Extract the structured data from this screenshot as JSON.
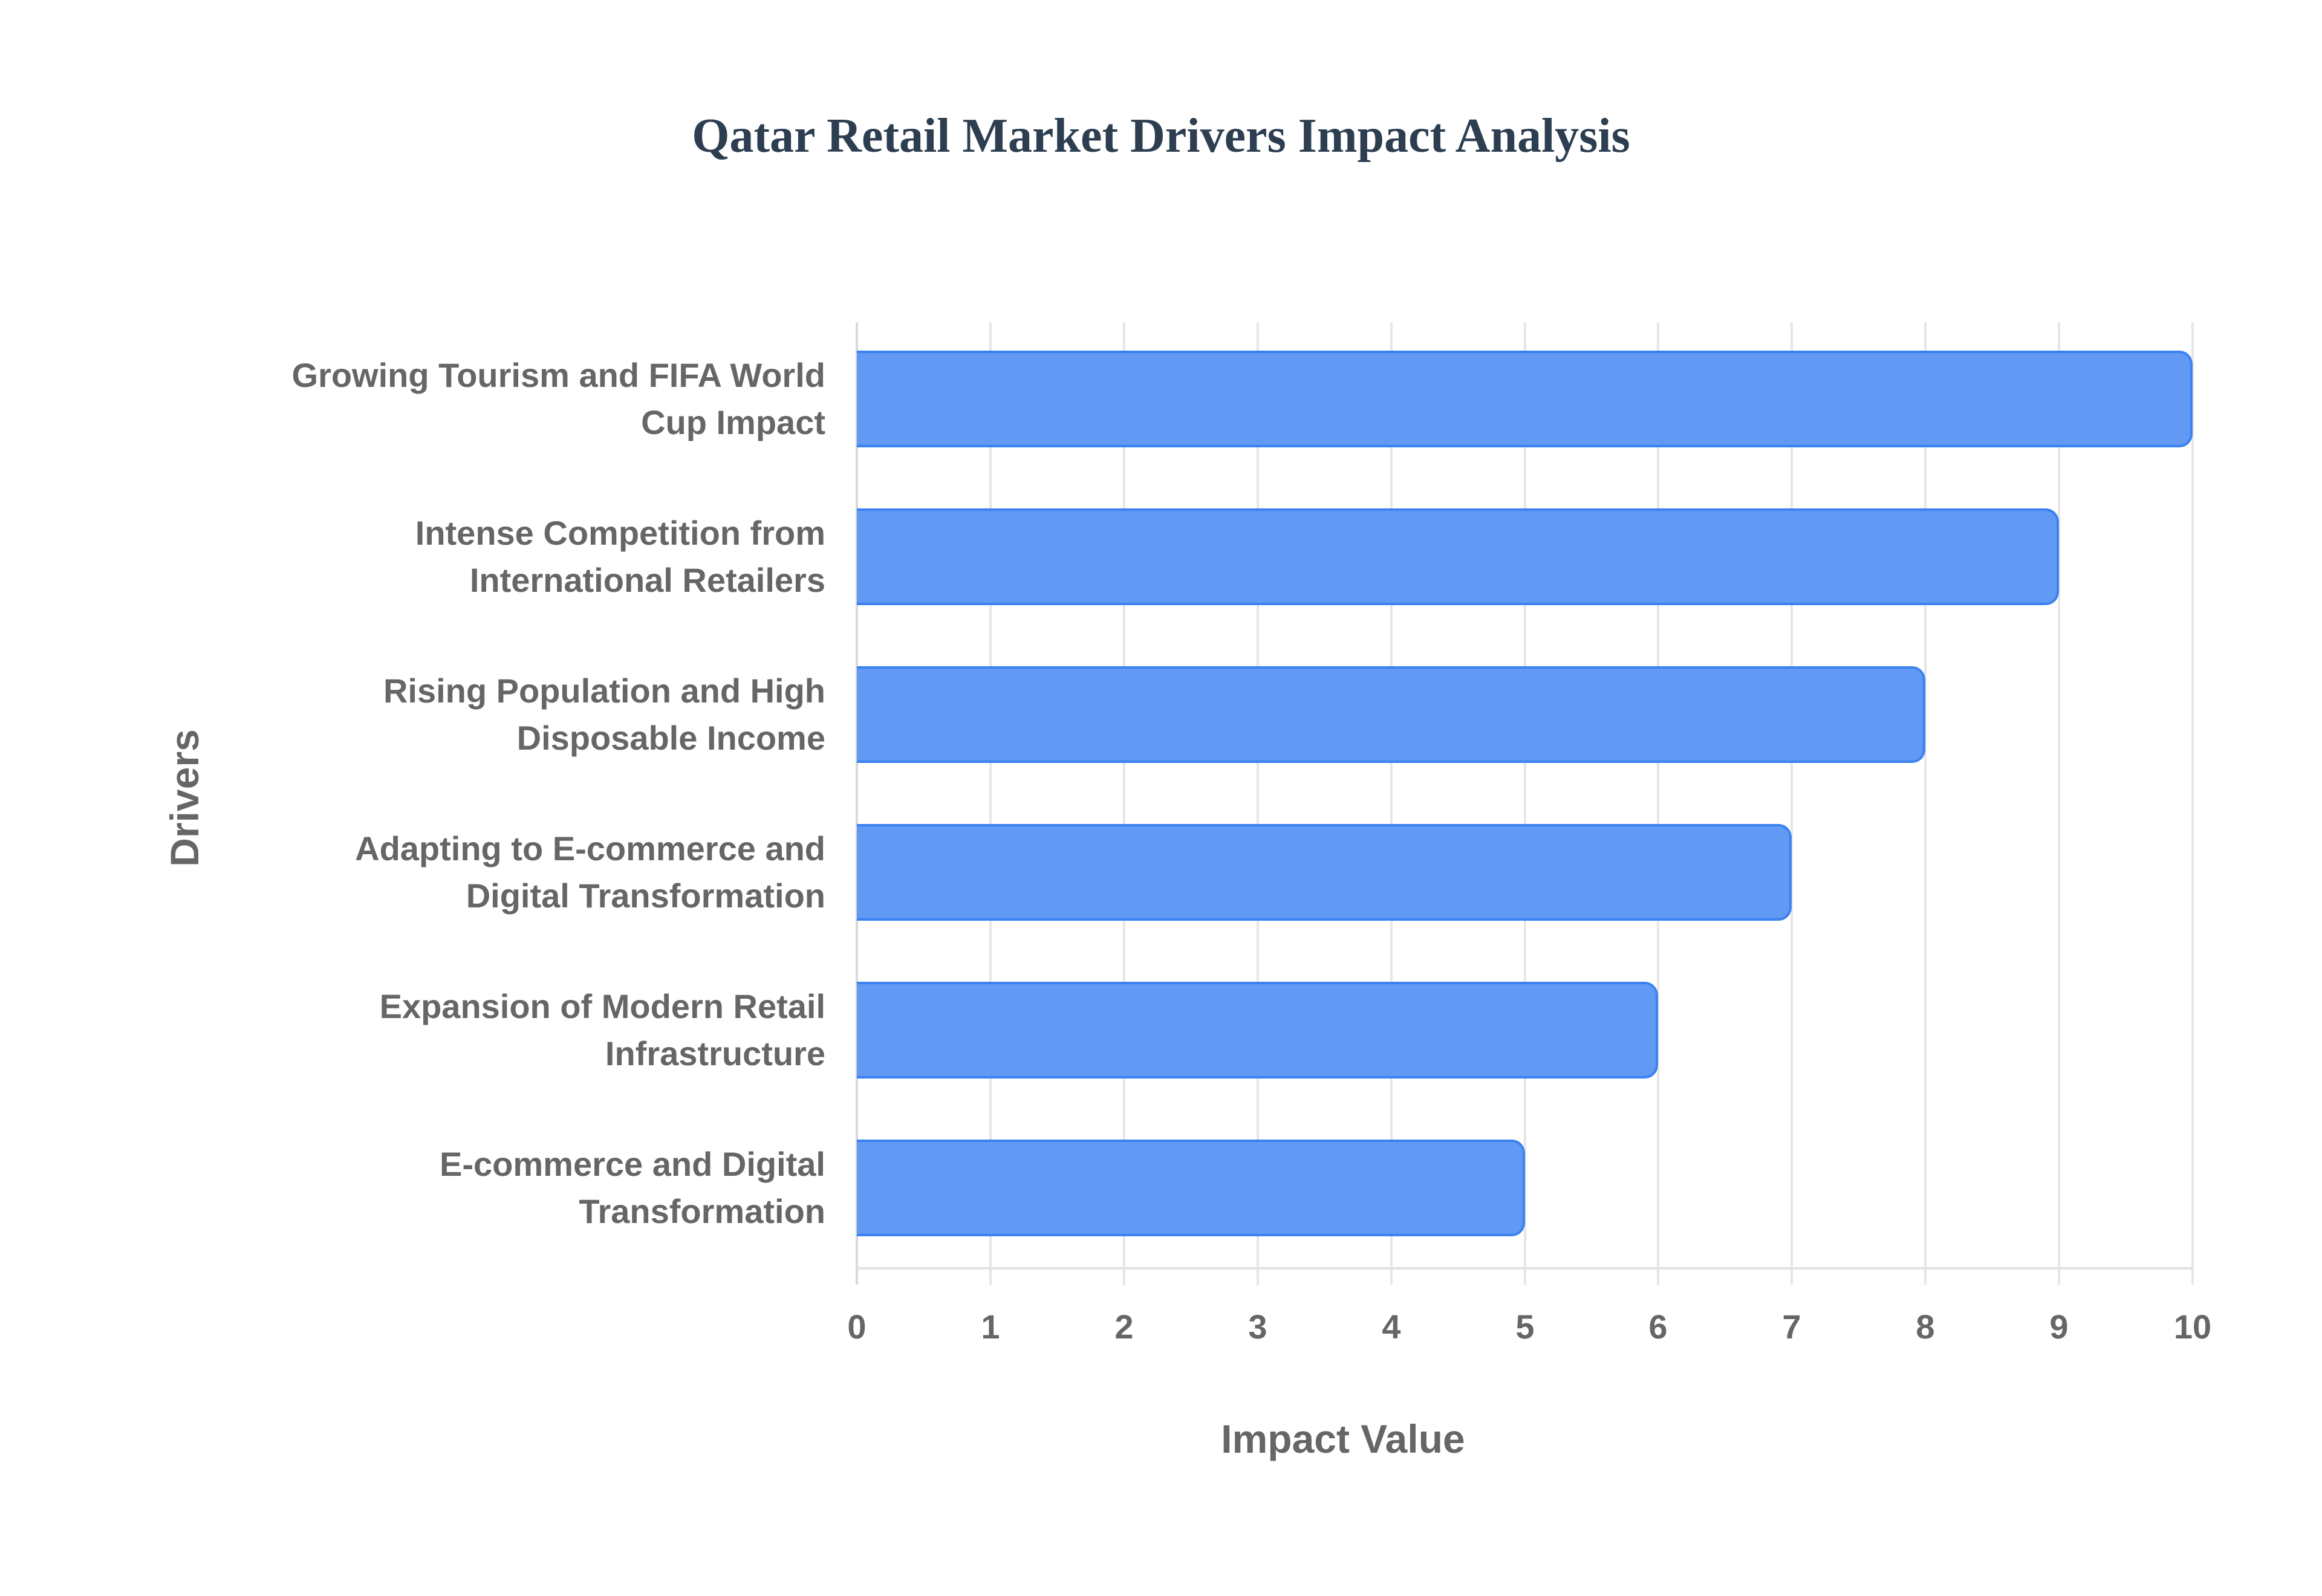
{
  "title": "Qatar Retail Market Drivers Impact Analysis",
  "colors": {
    "bar_fill": "#6199f5",
    "bar_border": "#3b82f0",
    "title": "#2c3e50",
    "axis_text": "#666666",
    "grid": "#e6e6e6"
  },
  "axes": {
    "x_title": "Impact Value",
    "y_title": "Drivers",
    "x_ticks": [
      "0",
      "1",
      "2",
      "3",
      "4",
      "5",
      "6",
      "7",
      "8",
      "9",
      "10"
    ]
  },
  "bars": [
    {
      "label_line1": "Growing Tourism and FIFA World",
      "label_line2": "Cup Impact",
      "value": 10
    },
    {
      "label_line1": "Intense Competition from",
      "label_line2": "International Retailers",
      "value": 9
    },
    {
      "label_line1": "Rising Population and High",
      "label_line2": "Disposable Income",
      "value": 8
    },
    {
      "label_line1": "Adapting to E-commerce and",
      "label_line2": "Digital Transformation",
      "value": 7
    },
    {
      "label_line1": "Expansion of Modern Retail",
      "label_line2": "Infrastructure",
      "value": 6
    },
    {
      "label_line1": "E-commerce and Digital",
      "label_line2": "Transformation",
      "value": 5
    }
  ],
  "chart_data": {
    "type": "bar",
    "orientation": "horizontal",
    "title": "Qatar Retail Market Drivers Impact Analysis",
    "xlabel": "Impact Value",
    "ylabel": "Drivers",
    "categories": [
      "Growing Tourism and FIFA World Cup Impact",
      "Intense Competition from International Retailers",
      "Rising Population and High Disposable Income",
      "Adapting to E-commerce and Digital Transformation",
      "Expansion of Modern Retail Infrastructure",
      "E-commerce and Digital Transformation"
    ],
    "values": [
      10,
      9,
      8,
      7,
      6,
      5
    ],
    "xlim": [
      0,
      10
    ],
    "x_ticks": [
      0,
      1,
      2,
      3,
      4,
      5,
      6,
      7,
      8,
      9,
      10
    ],
    "grid": {
      "x": true,
      "y": false
    },
    "legend": null
  }
}
